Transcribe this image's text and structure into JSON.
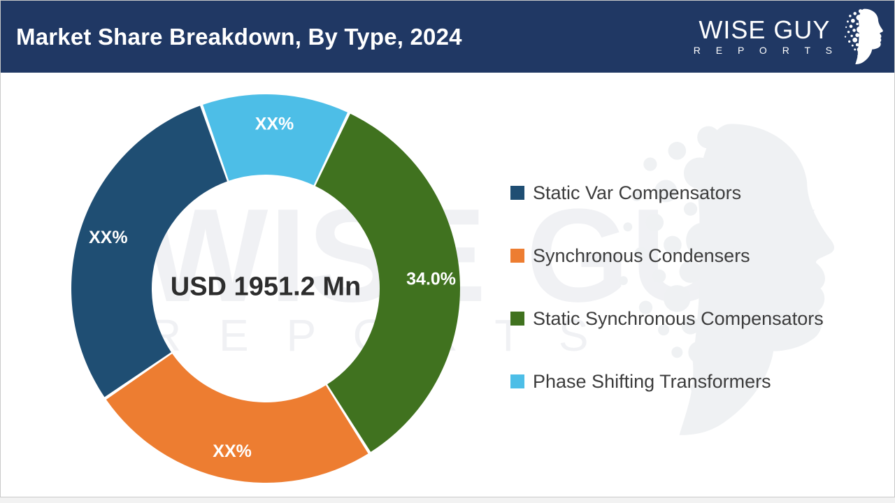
{
  "header": {
    "title": "Market Share Breakdown, By Type, 2024",
    "logo": {
      "line1": "WISE GUY",
      "line2": "R E P O R T S"
    }
  },
  "watermark": {
    "line1": "WISE GUY",
    "line2": "R E P O R T S"
  },
  "chart_data": {
    "type": "pie",
    "subtype": "donut",
    "title": "Market Share Breakdown, By Type, 2024",
    "center_label": "USD 1951.2 Mn",
    "start_angle_deg": 109.3,
    "direction": "clockwise",
    "legend_position": "right",
    "segments": [
      {
        "name": "Phase Shifting Transformers",
        "display_label": "XX%",
        "value_pct": 12.4,
        "color": "#4dbee7"
      },
      {
        "name": "Static Synchronous Compensators",
        "display_label": "34.0%",
        "value_pct": 34.0,
        "color": "#40721f"
      },
      {
        "name": "Synchronous Condensers",
        "display_label": "XX%",
        "value_pct": 24.4,
        "color": "#ed7d31"
      },
      {
        "name": "Static Var Compensators",
        "display_label": "XX%",
        "value_pct": 29.2,
        "color": "#1f4e73"
      }
    ],
    "legend_order": [
      3,
      2,
      1,
      0
    ]
  }
}
